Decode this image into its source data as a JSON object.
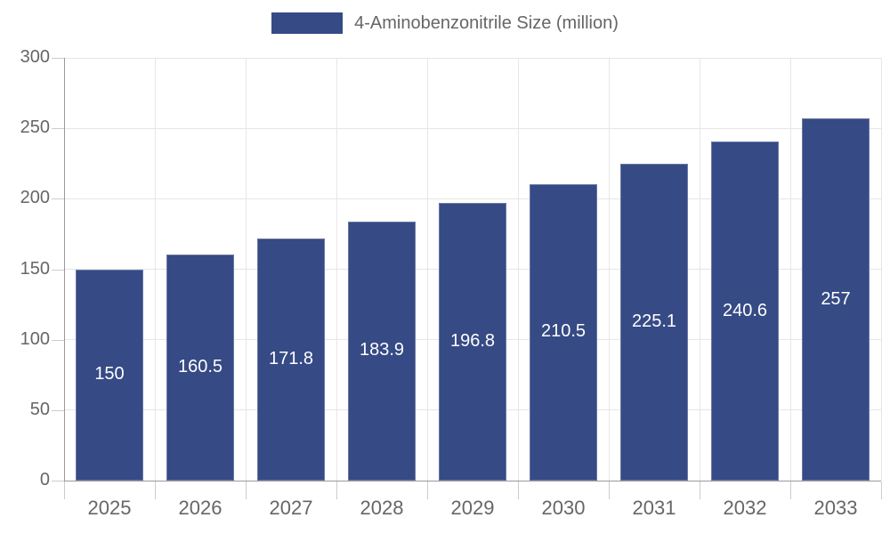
{
  "chart_data": {
    "type": "bar",
    "title": "",
    "legend_label": "4-Aminobenzonitrile Size (million)",
    "legend_position": "top",
    "categories": [
      "2025",
      "2026",
      "2027",
      "2028",
      "2029",
      "2030",
      "2031",
      "2032",
      "2033"
    ],
    "values": [
      150,
      160.5,
      171.8,
      183.9,
      196.8,
      210.5,
      225.1,
      240.6,
      257
    ],
    "value_labels": [
      "150",
      "160.5",
      "171.8",
      "183.9",
      "196.8",
      "210.5",
      "225.1",
      "240.6",
      "257"
    ],
    "xlabel": "",
    "ylabel": "",
    "ylim": [
      0,
      300
    ],
    "yticks": [
      0,
      50,
      100,
      150,
      200,
      250,
      300
    ],
    "grid": true,
    "colors": {
      "bar": "#364a85",
      "bar_border": "#6b77a5",
      "grid": "#e6e6e6",
      "axis": "#9a9a9a",
      "tick": "#cccccc",
      "axis_text": "#666666",
      "bar_label_text": "#ffffff"
    }
  }
}
